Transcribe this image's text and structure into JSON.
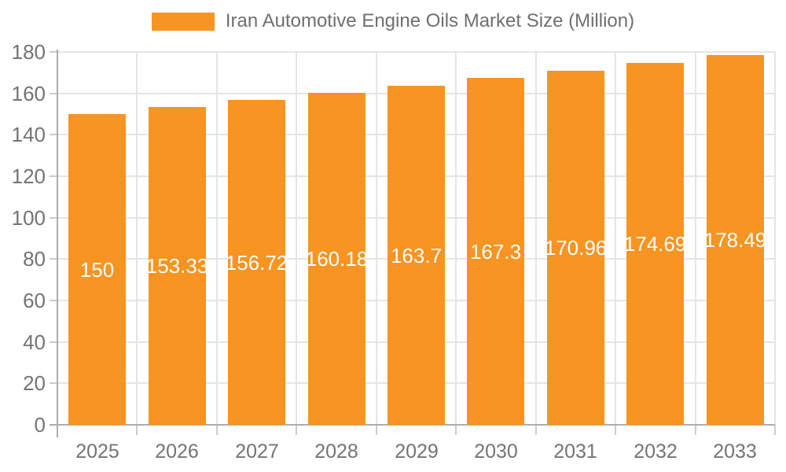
{
  "colors": {
    "bar_fill": "#f79422",
    "bar_value_text": "#ffffff",
    "gridline": "#e5e5e5",
    "axis_line": "#adadad",
    "tick": "#cccccc",
    "axis_label_text": "#747474",
    "legend_text": "#6f6f6f",
    "background": "#ffffff"
  },
  "legend": {
    "swatch_icon": "series-swatch",
    "label": "Iran Automotive Engine Oils Market Size (Million)"
  },
  "chart_data": {
    "type": "bar",
    "title": "Iran Automotive Engine Oils Market Size (Million)",
    "xlabel": "",
    "ylabel": "",
    "categories": [
      "2025",
      "2026",
      "2027",
      "2028",
      "2029",
      "2030",
      "2031",
      "2032",
      "2033"
    ],
    "values": [
      150,
      153.33,
      156.72,
      160.18,
      163.7,
      167.3,
      170.96,
      174.69,
      178.49
    ],
    "bar_labels": [
      "150",
      "153.33",
      "156.72",
      "160.18",
      "163.7",
      "167.3",
      "170.96",
      "174.69",
      "178.49"
    ],
    "ylim": [
      0,
      180
    ],
    "yticks": [
      0,
      20,
      40,
      60,
      80,
      100,
      120,
      140,
      160,
      180
    ],
    "grid": true,
    "legend_position": "top",
    "series_name": "Iran Automotive Engine Oils Market Size (Million)"
  }
}
